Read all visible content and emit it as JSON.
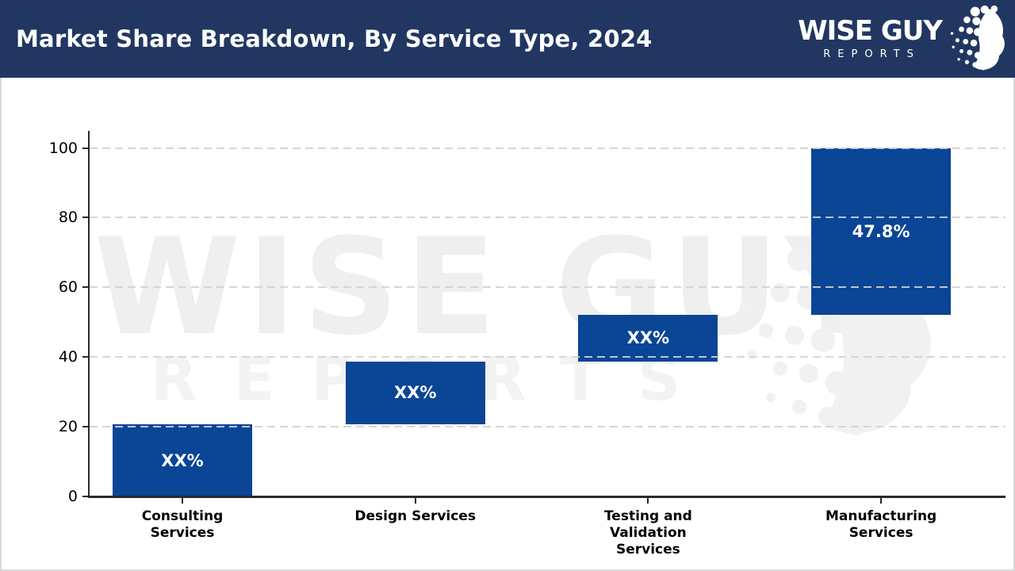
{
  "header": {
    "title": "Market Share Breakdown, By Service Type, 2024",
    "logo": {
      "line1": "WISE GUY",
      "line2": "REPORTS"
    }
  },
  "watermark": {
    "line1": "WISE GUY",
    "line2": "REPORTS"
  },
  "chart_data": {
    "type": "bar",
    "subtype": "waterfall-floating-bars",
    "title": "Market Share Breakdown, By Service Type, 2024",
    "categories": [
      "Consulting Services",
      "Design Services",
      "Testing and Validation Services",
      "Manufacturing Services"
    ],
    "category_label_lines": [
      [
        "Consulting",
        "Services"
      ],
      [
        "Design Services"
      ],
      [
        "Testing and",
        "Validation",
        "Services"
      ],
      [
        "Manufacturing",
        "Services"
      ]
    ],
    "segments": [
      {
        "category": "Consulting Services",
        "start": 0,
        "end": 20.7,
        "label": "XX%"
      },
      {
        "category": "Design Services",
        "start": 20.7,
        "end": 38.7,
        "label": "XX%"
      },
      {
        "category": "Testing and Validation Services",
        "start": 38.7,
        "end": 52.2,
        "label": "XX%"
      },
      {
        "category": "Manufacturing Services",
        "start": 52.2,
        "end": 100,
        "label": "47.8%"
      }
    ],
    "xlabel": "",
    "ylabel": "",
    "ylim": [
      0,
      105
    ],
    "yticks": [
      0,
      20,
      40,
      60,
      80,
      100
    ],
    "grid": "horizontal-dashed-over-bars",
    "legend": "none",
    "bar_color": "#0a4596",
    "bar_label_color": "#ffffff"
  },
  "colors": {
    "header_bg": "#213761",
    "bar": "#0a4596",
    "axis": "#2a2a2a",
    "gridline": "#d2d2d2",
    "watermark": "#efefef",
    "frame_border": "#d9d9d9"
  }
}
